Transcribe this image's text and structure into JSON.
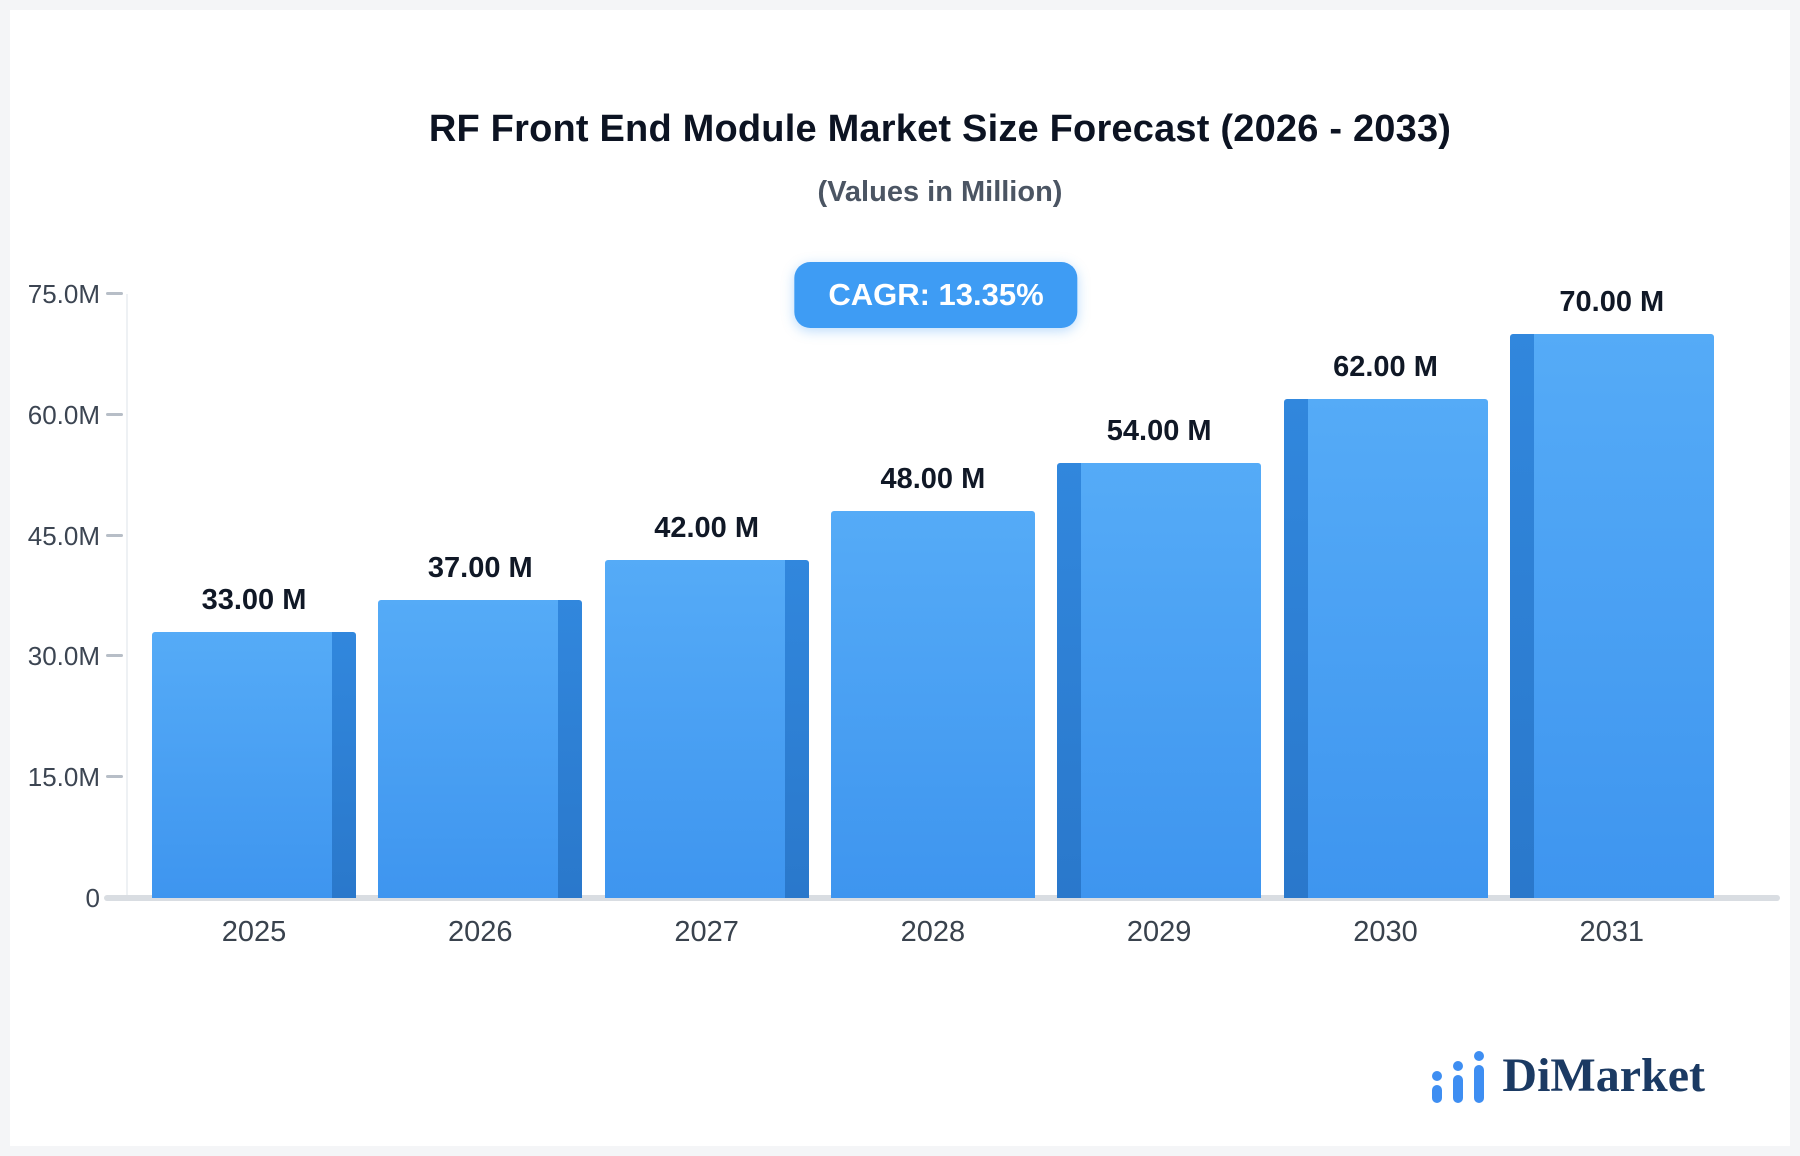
{
  "header": {
    "title": "RF Front End Module Market Size Forecast (2026 - 2033)",
    "subtitle": "(Values in Million)",
    "cagr_label": "CAGR: 13.35%"
  },
  "chart_data": {
    "type": "bar",
    "title": "RF Front End Module Market Size Forecast (2026 - 2033)",
    "subtitle": "(Values in Million)",
    "unit": "Million",
    "categories": [
      "2025",
      "2026",
      "2027",
      "2028",
      "2029",
      "2030",
      "2031"
    ],
    "values": [
      33,
      37,
      42,
      48,
      54,
      62,
      70
    ],
    "value_labels": [
      "33.00 M",
      "37.00 M",
      "42.00 M",
      "48.00 M",
      "54.00 M",
      "62.00 M",
      "70.00 M"
    ],
    "ylim": [
      0,
      75
    ],
    "yticks": [
      0,
      15,
      30,
      45,
      60,
      75
    ],
    "ytick_labels": [
      "0",
      "15.0M",
      "30.0M",
      "45.0M",
      "60.0M",
      "75.0M"
    ],
    "grid": false,
    "legend": false,
    "annotations": [
      "CAGR: 13.35%"
    ],
    "colors": {
      "bar_top": "#55ABF7",
      "bar_bottom": "#3E95EF",
      "bar_side": "#2C7BCE",
      "badge": "#3E9CF4",
      "axis_line": "#D9DDE2",
      "label_text": "#101826",
      "axis_text": "#3C4552",
      "brand_navy": "#1B3A63",
      "brand_blue": "#3E8EF2"
    }
  },
  "branding": {
    "name": "DiMarket",
    "icon": "bar-chart-logo-icon"
  }
}
